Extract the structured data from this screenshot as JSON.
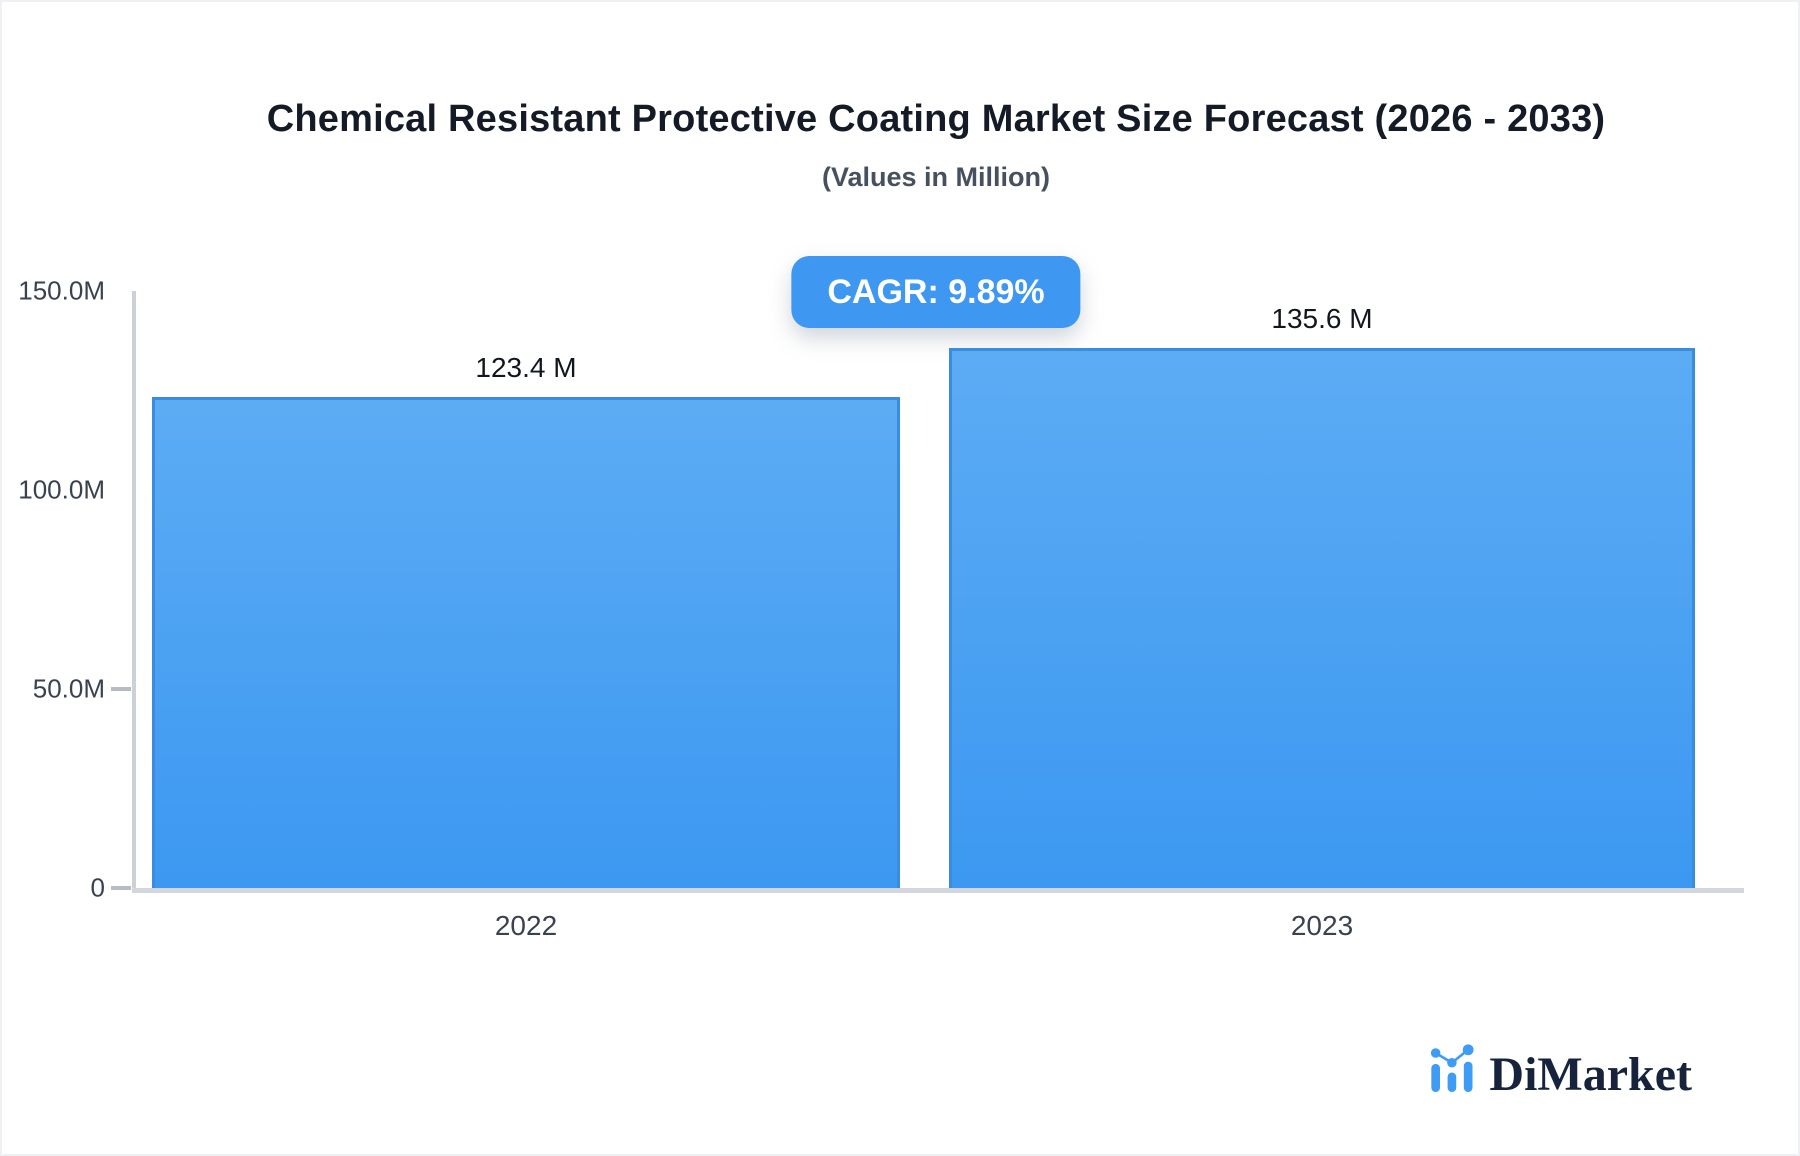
{
  "header": {
    "title": "Chemical Resistant Protective Coating Market Size Forecast (2026 - 2033)",
    "subtitle": "(Values in Million)",
    "cagr_badge": "CAGR: 9.89%"
  },
  "colors": {
    "accent_blue": "#3E97F0",
    "bar_fill_top": "#5CACF4",
    "bar_fill_bottom": "#3C98F1",
    "bar_border": "#3A8CDE",
    "axis_gray": "#ccd1d8",
    "logo_navy": "#17233d"
  },
  "chart_data": {
    "type": "bar",
    "title": "Chemical Resistant Protective Coating Market Size Forecast (2026 - 2033)",
    "subtitle": "(Values in Million)",
    "units": "Million",
    "categories": [
      "2022",
      "2023"
    ],
    "values": [
      123.4,
      135.6
    ],
    "value_labels": [
      "123.4 M",
      "135.6 M"
    ],
    "cagr_percent": 9.89,
    "xlabel": "",
    "ylabel": "",
    "ylim": [
      0,
      150
    ],
    "grid": false,
    "legend": "none",
    "yticks": [
      {
        "value": 150,
        "label": "150.0M",
        "dash": false
      },
      {
        "value": 100,
        "label": "100.0M",
        "dash": false
      },
      {
        "value": 50,
        "label": "50.0M",
        "dash": true
      },
      {
        "value": 0,
        "label": "0",
        "dash": true
      }
    ]
  },
  "logo": {
    "text": "DiMarket",
    "icon": "bar-chart-with-dots-icon"
  }
}
